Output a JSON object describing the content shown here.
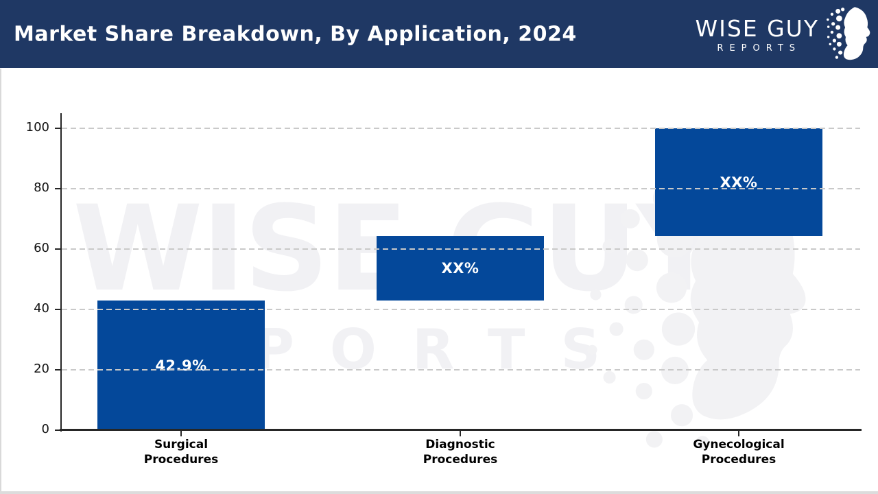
{
  "header": {
    "title": "Market Share Breakdown, By Application, 2024",
    "logo": {
      "name": "WISE GUY",
      "tagline": "REPORTS"
    }
  },
  "watermark": {
    "line1": "WISE GUY",
    "line2": "REPORTS"
  },
  "colors": {
    "header_bg": "#1f3864",
    "bar": "#04489a",
    "grid": "#c9c9c9",
    "axis": "#262626",
    "bar_label": "#ffffff",
    "watermark": "#f1f1f4"
  },
  "chart_data": {
    "type": "bar",
    "subtype": "waterfall-floating-segments",
    "title": "Market Share Breakdown, By Application, 2024",
    "categories": [
      "Surgical Procedures",
      "Diagnostic Procedures",
      "Gynecological Procedures"
    ],
    "bars": [
      {
        "category": "Surgical Procedures",
        "start": 0,
        "end": 42.9,
        "value_label": "42.9%"
      },
      {
        "category": "Diagnostic Procedures",
        "start": 42.9,
        "end": 64.3,
        "value_label": "XX%"
      },
      {
        "category": "Gynecological Procedures",
        "start": 64.3,
        "end": 100,
        "value_label": "XX%"
      }
    ],
    "yticks": [
      0,
      20,
      40,
      60,
      80,
      100
    ],
    "ylim": [
      0,
      100
    ],
    "xlabel": "",
    "ylabel": "",
    "grid": "horizontal dashed gridlines drawn above bars",
    "legend": false
  }
}
